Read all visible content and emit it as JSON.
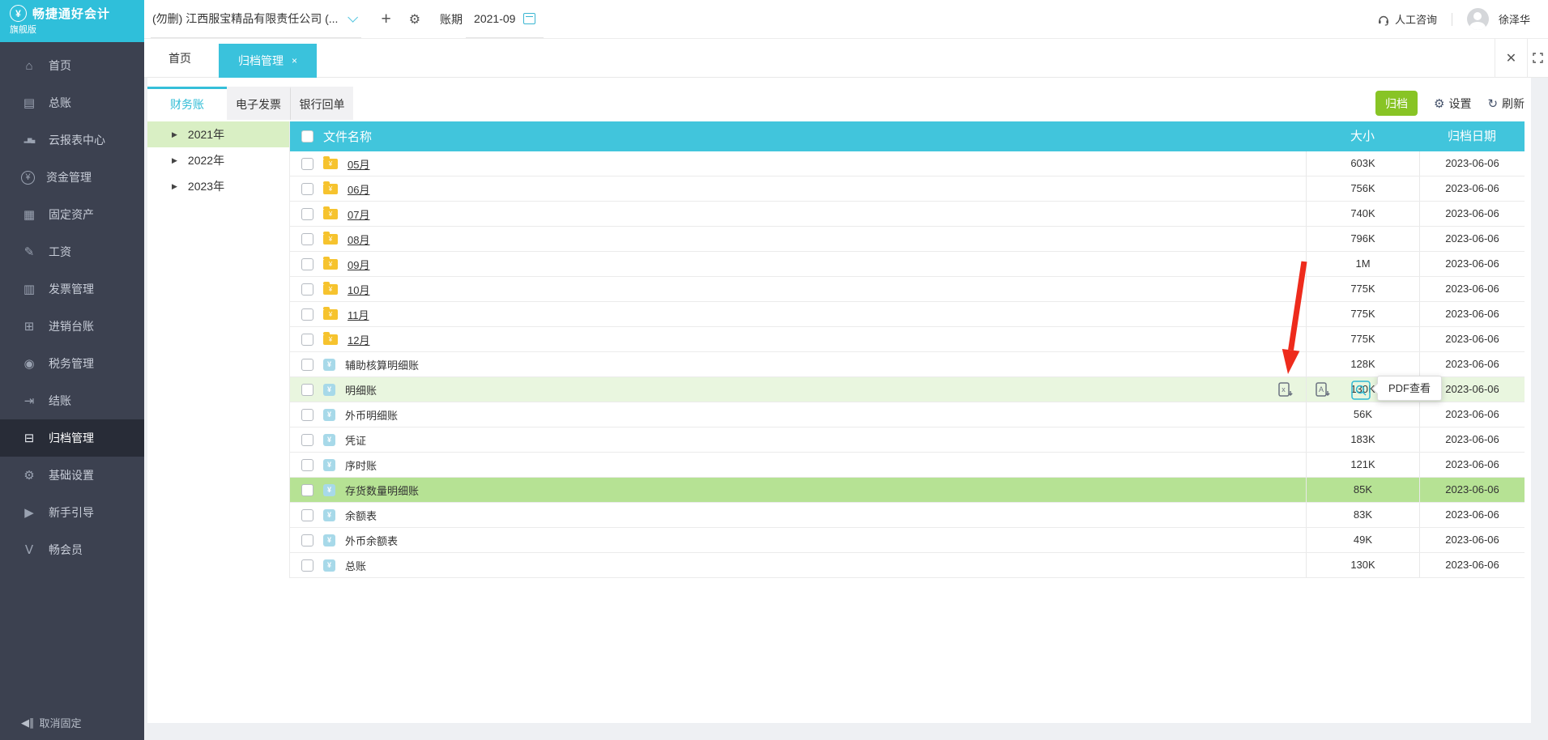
{
  "brand": {
    "name": "畅捷通好会计",
    "edition": "旗舰版",
    "logo_glyph": "¥"
  },
  "topbar": {
    "company": "(勿删) 江西服宝精品有限责任公司 (...",
    "period_label": "账期",
    "period_value": "2021-09",
    "support_label": "人工咨询",
    "username": "徐泽华"
  },
  "tabbar": {
    "home": "首页",
    "active_tab": "归档管理",
    "close_glyph": "×"
  },
  "sidebar": {
    "items": [
      {
        "label": "首页",
        "icon": "home-icon"
      },
      {
        "label": "总账",
        "icon": "general-ledger-icon"
      },
      {
        "label": "云报表中心",
        "icon": "cloud-report-icon"
      },
      {
        "label": "资金管理",
        "icon": "funds-icon"
      },
      {
        "label": "固定资产",
        "icon": "fixed-assets-icon"
      },
      {
        "label": "工资",
        "icon": "salary-icon"
      },
      {
        "label": "发票管理",
        "icon": "invoice-icon"
      },
      {
        "label": "进销台账",
        "icon": "purchase-sales-icon"
      },
      {
        "label": "税务管理",
        "icon": "tax-icon"
      },
      {
        "label": "结账",
        "icon": "closing-icon"
      },
      {
        "label": "归档管理",
        "icon": "archive-icon",
        "active": true
      },
      {
        "label": "基础设置",
        "icon": "settings-icon"
      },
      {
        "label": "新手引导",
        "icon": "guide-icon"
      },
      {
        "label": "畅会员",
        "icon": "member-icon"
      }
    ],
    "collapse_label": "取消固定"
  },
  "subtabs": [
    {
      "label": "财务账",
      "active": true
    },
    {
      "label": "电子发票",
      "active": false
    },
    {
      "label": "银行回单",
      "active": false
    }
  ],
  "toolbar": {
    "archive": "归档",
    "settings": "设置",
    "refresh": "刷新"
  },
  "tree": [
    {
      "label": "2021年",
      "selected": true
    },
    {
      "label": "2022年",
      "selected": false
    },
    {
      "label": "2023年",
      "selected": false
    }
  ],
  "table": {
    "columns": {
      "name": "文件名称",
      "size": "大小",
      "date": "归档日期"
    },
    "rows": [
      {
        "name": "05月",
        "icon": "folder-icon",
        "size": "603K",
        "date": "2023-06-06"
      },
      {
        "name": "06月",
        "icon": "folder-icon",
        "size": "756K",
        "date": "2023-06-06"
      },
      {
        "name": "07月",
        "icon": "folder-icon",
        "size": "740K",
        "date": "2023-06-06"
      },
      {
        "name": "08月",
        "icon": "folder-icon",
        "size": "796K",
        "date": "2023-06-06"
      },
      {
        "name": "09月",
        "icon": "folder-icon",
        "size": "1M",
        "date": "2023-06-06"
      },
      {
        "name": "10月",
        "icon": "folder-icon",
        "size": "775K",
        "date": "2023-06-06"
      },
      {
        "name": "11月",
        "icon": "folder-icon",
        "size": "775K",
        "date": "2023-06-06"
      },
      {
        "name": "12月",
        "icon": "folder-icon",
        "size": "775K",
        "date": "2023-06-06"
      },
      {
        "name": "辅助核算明细账",
        "icon": "file-icon",
        "size": "128K",
        "date": "2023-06-06"
      },
      {
        "name": "明细账",
        "icon": "file-icon",
        "size": "130K",
        "date": "2023-06-06",
        "state": "hover",
        "actions": [
          "export-excel-icon",
          "export-pdf-icon",
          "pdf-preview-icon"
        ]
      },
      {
        "name": "外币明细账",
        "icon": "file-icon",
        "size": "56K",
        "date": "2023-06-06"
      },
      {
        "name": "凭证",
        "icon": "file-icon",
        "size": "183K",
        "date": "2023-06-06"
      },
      {
        "name": "序时账",
        "icon": "file-icon",
        "size": "121K",
        "date": "2023-06-06"
      },
      {
        "name": "存货数量明细账",
        "icon": "file-icon",
        "size": "85K",
        "date": "2023-06-06",
        "state": "selected"
      },
      {
        "name": "余额表",
        "icon": "file-icon",
        "size": "83K",
        "date": "2023-06-06"
      },
      {
        "name": "外币余额表",
        "icon": "file-icon",
        "size": "49K",
        "date": "2023-06-06"
      },
      {
        "name": "总账",
        "icon": "file-icon",
        "size": "130K",
        "date": "2023-06-06"
      }
    ]
  },
  "tooltip": {
    "text": "PDF查看"
  },
  "annotation": {
    "type": "red-arrow",
    "color": "#ee2b1c",
    "points_at": "pdf-preview-icon"
  },
  "colors": {
    "accent_cyan": "#3ac2dc",
    "table_header": "#41c5dc",
    "sidebar_bg": "#3c4150",
    "sidebar_active": "#282c37",
    "archive_button": "#88c425",
    "row_hover": "#e9f6df",
    "row_selected": "#b6e294",
    "tree_selected": "#d9efc4",
    "annotation_red": "#ee2b1c"
  }
}
